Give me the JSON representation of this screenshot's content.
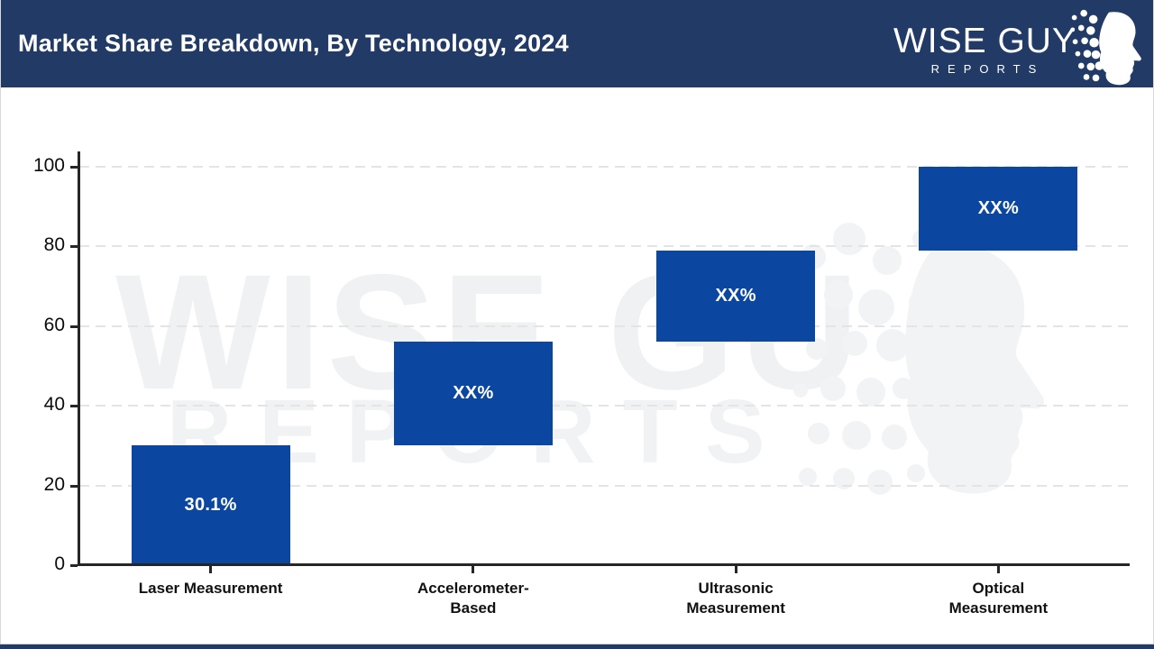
{
  "header": {
    "title": "Market Share Breakdown, By Technology, 2024",
    "logo": {
      "name_line": "WISE GUY",
      "sub_line": "REPORTS",
      "head_icon": "dotted-head-profile-icon"
    }
  },
  "watermark": {
    "line1": "WISE GU",
    "line2": "REPORTS"
  },
  "chart_data": {
    "type": "bar",
    "variant": "waterfall-floating-bars",
    "title": "Market Share Breakdown, By Technology, 2024",
    "categories": [
      "Laser Measurement",
      "Accelerometer-\nBased",
      "Ultrasonic\nMeasurement",
      "Optical\nMeasurement"
    ],
    "series": [
      {
        "name": "Market share (%)",
        "segments": [
          {
            "category": "Laser Measurement",
            "start": 0,
            "end": 30.1,
            "label": "30.1%"
          },
          {
            "category": "Accelerometer-Based",
            "start": 30.1,
            "end": 56,
            "label": "XX%"
          },
          {
            "category": "Ultrasonic Measurement",
            "start": 56,
            "end": 79,
            "label": "XX%"
          },
          {
            "category": "Optical Measurement",
            "start": 79,
            "end": 100,
            "label": "XX%"
          }
        ]
      }
    ],
    "xlabel": "",
    "ylabel": "",
    "ylim": [
      0,
      100
    ],
    "yticks": [
      0,
      20,
      40,
      60,
      80,
      100
    ],
    "grid": {
      "horizontal": true,
      "style": "dashed",
      "color": "#E4E4E4"
    },
    "legend": "none",
    "bar_color": "#0B47A0",
    "bar_label_color": "#FFFFFF"
  },
  "colors": {
    "header_bg": "#213A66",
    "footer_bg": "#213A66",
    "bar": "#0B47A0",
    "axis": "#262626",
    "grid": "#E4E4E4",
    "watermark": "#F0F1F3",
    "page_bg": "#FFFFFF"
  }
}
